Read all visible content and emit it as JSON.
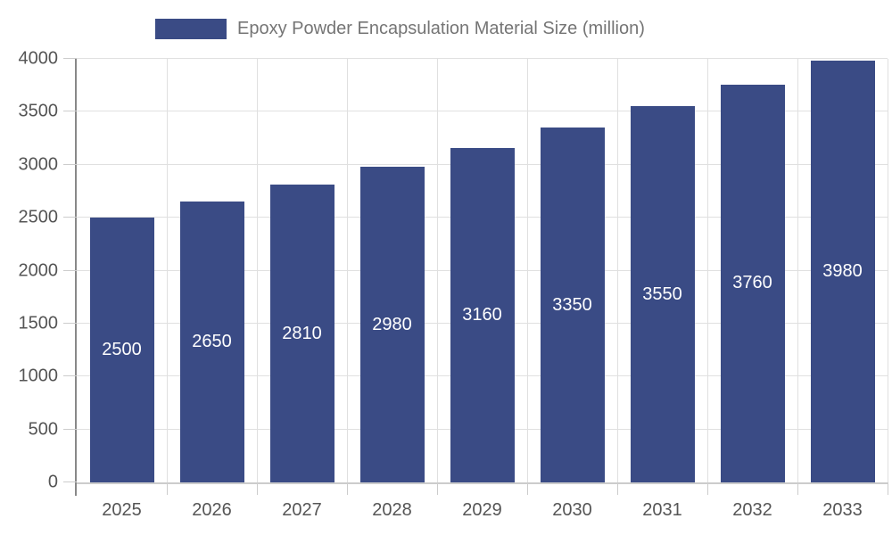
{
  "legend": {
    "swatch_color": "#3A4B85"
  },
  "chart_data": {
    "type": "bar",
    "title": "Epoxy Powder Encapsulation Material Size (million)",
    "categories": [
      "2025",
      "2026",
      "2027",
      "2028",
      "2029",
      "2030",
      "2031",
      "2032",
      "2033"
    ],
    "values": [
      2500,
      2650,
      2810,
      2980,
      3160,
      3350,
      3550,
      3760,
      3980
    ],
    "xlabel": "",
    "ylabel": "",
    "ylim": [
      0,
      4000
    ],
    "yticks": [
      0,
      500,
      1000,
      1500,
      2000,
      2500,
      3000,
      3500,
      4000
    ],
    "grid": true,
    "legend_position": "top-center",
    "bar_color": "#3A4B85",
    "value_label_color": "#ffffff",
    "axis_label_color": "#555555",
    "gridline_color": "#e0e0e0"
  }
}
